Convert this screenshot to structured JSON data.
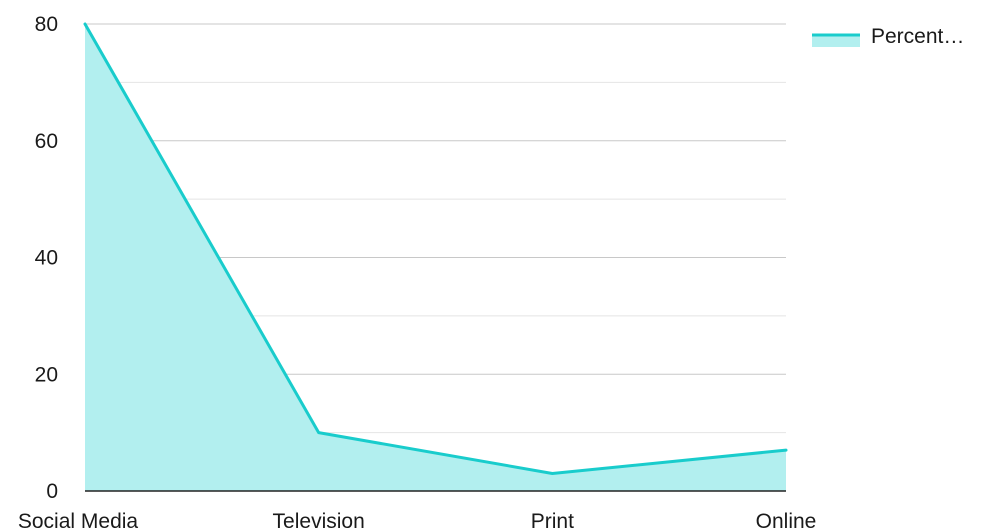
{
  "colors": {
    "line": "#19cccc",
    "area": "#b2efef",
    "grid_major": "#c8c8c8",
    "grid_minor": "#e4e4e4",
    "axis": "#222222",
    "text": "#1a1a1a"
  },
  "chart_data": {
    "type": "area",
    "categories": [
      "Social Media",
      "Television",
      "Print",
      "Online"
    ],
    "series": [
      {
        "name": "Percent…",
        "values": [
          80,
          10,
          3,
          7
        ]
      }
    ],
    "title": "",
    "xlabel": "",
    "ylabel": "",
    "ylim": [
      0,
      80
    ],
    "yticks": [
      0,
      20,
      40,
      60,
      80
    ],
    "grid": true,
    "legend": "top-right"
  }
}
